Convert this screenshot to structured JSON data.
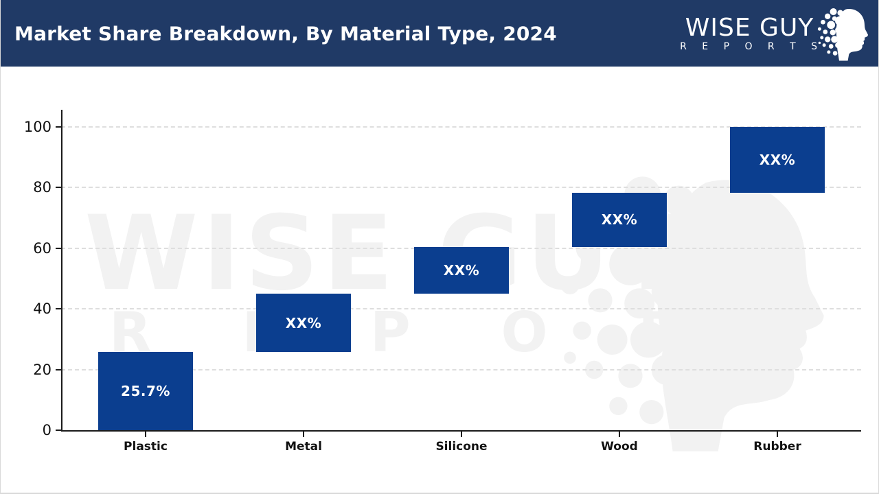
{
  "header": {
    "title": "Market Share Breakdown, By Material Type, 2024",
    "background_color": "#203a66",
    "logo": {
      "line1": "WISE GUY",
      "line2": "R E P O R T S"
    }
  },
  "watermark": {
    "line1": "WISE GUY",
    "line2": "R E P O R T S"
  },
  "chart_data": {
    "type": "bar",
    "variant": "waterfall",
    "title": "Market Share Breakdown, By Material Type, 2024",
    "categories": [
      "Plastic",
      "Metal",
      "Silicone",
      "Wood",
      "Rubber"
    ],
    "segments": [
      {
        "category": "Plastic",
        "start": 0,
        "end": 25.7,
        "label": "25.7%"
      },
      {
        "category": "Metal",
        "start": 25.7,
        "end": 45.0,
        "label": "XX%"
      },
      {
        "category": "Silicone",
        "start": 45.0,
        "end": 60.3,
        "label": "XX%"
      },
      {
        "category": "Wood",
        "start": 60.5,
        "end": 78.3,
        "label": "XX%"
      },
      {
        "category": "Rubber",
        "start": 78.3,
        "end": 100,
        "label": "XX%"
      }
    ],
    "y_ticks": [
      0,
      20,
      40,
      60,
      80,
      100
    ],
    "ylim": [
      0,
      105
    ],
    "xlabel": "",
    "ylabel": "",
    "bar_color": "#0b3e8f",
    "grid": "horizontal dashed, light gray",
    "legend": "none"
  }
}
